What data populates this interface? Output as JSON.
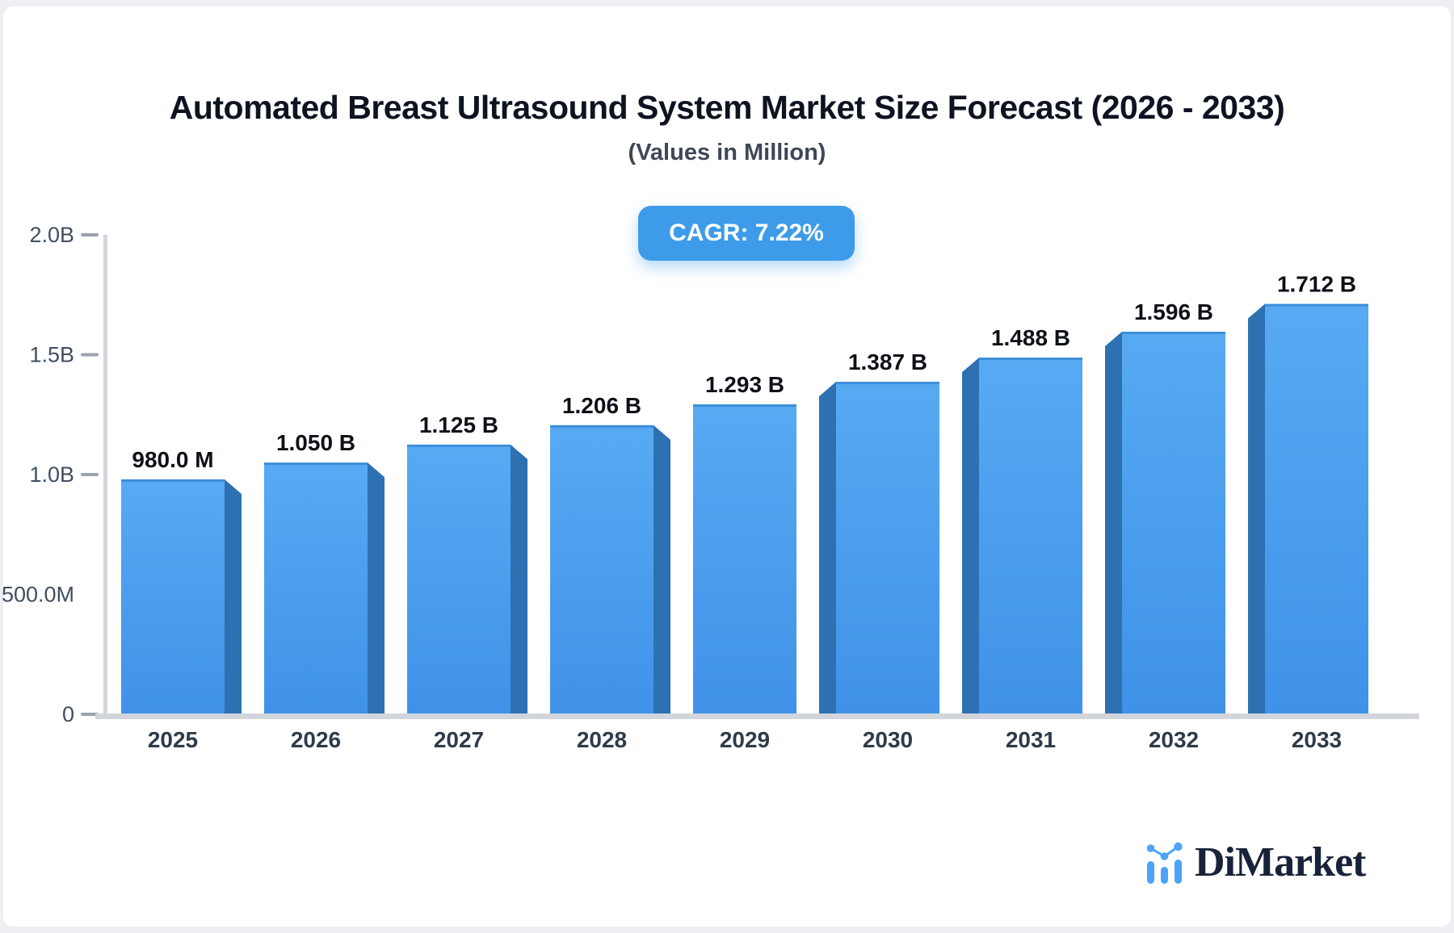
{
  "chart_data": {
    "type": "bar",
    "title": "Automated Breast Ultrasound System Market Size Forecast (2026 - 2033)",
    "subtitle": "(Values in Million)",
    "categories": [
      "2025",
      "2026",
      "2027",
      "2028",
      "2029",
      "2030",
      "2031",
      "2032",
      "2033"
    ],
    "values_million": [
      980,
      1050,
      1125,
      1206,
      1293,
      1387,
      1488,
      1596,
      1712
    ],
    "bar_labels": [
      "980.0 M",
      "1.050 B",
      "1.125 B",
      "1.206 B",
      "1.293 B",
      "1.387 B",
      "1.488 B",
      "1.596 B",
      "1.712 B"
    ],
    "ylim": [
      0,
      2000
    ],
    "y_ticks": [
      {
        "label": "2.0B",
        "value_million": 2000,
        "dash": true
      },
      {
        "label": "1.5B",
        "value_million": 1500,
        "dash": true
      },
      {
        "label": "1.0B",
        "value_million": 1000,
        "dash": true
      },
      {
        "label": "500.0M",
        "value_million": 500,
        "dash": false
      },
      {
        "label": "0",
        "value_million": 0,
        "dash": true
      }
    ],
    "legend": null,
    "grid": false,
    "bar_style": {
      "front_top": "#57aaf2",
      "front_bottom": "#3f92e8",
      "side": "#2d71b3",
      "top_edge": "#3181cd"
    }
  },
  "badge": {
    "label": "CAGR: 7.22%",
    "background": "#3d9bea",
    "text_color": "#ffffff"
  },
  "axis_colors": {
    "axis_line": "#d3d6dc",
    "baseline": "#d2d5db",
    "tick_dash": "#9ba1ae",
    "tick_label": "#414e60",
    "year_label": "#2e3b4b",
    "value_label": "#0d1117"
  },
  "logo": {
    "text": "DiMarket",
    "text_color": "#18233a",
    "icon_color": "#4da3f5"
  }
}
